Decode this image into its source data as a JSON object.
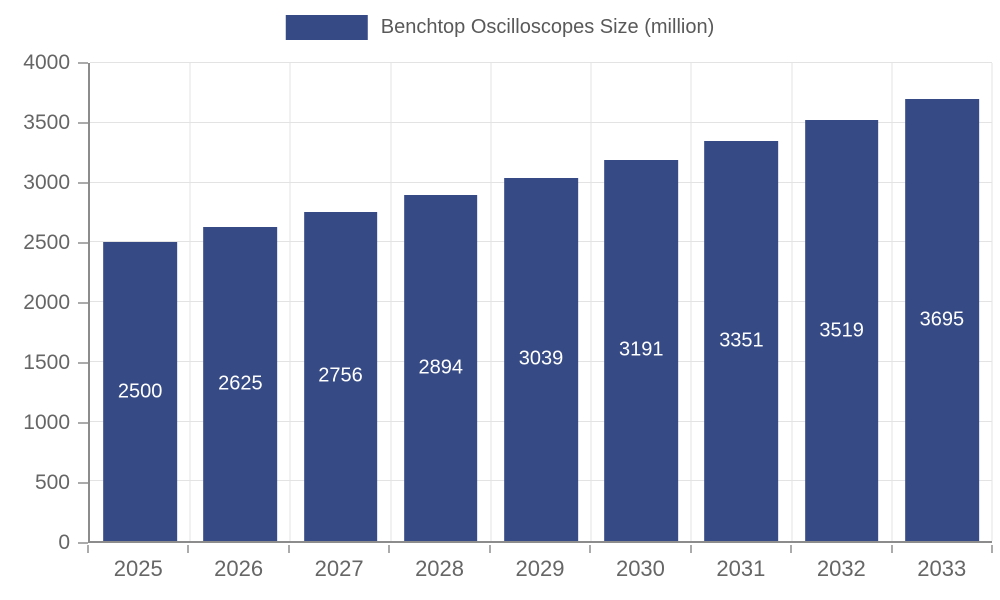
{
  "legend": {
    "label": "Benchtop Oscilloscopes Size (million)"
  },
  "colors": {
    "bar": "#364a85",
    "grid": "#e3e3e3",
    "axis": "#8c8c8c",
    "tick": "#ababab",
    "tick_text": "#666666",
    "legend_text": "#595959",
    "value_label_text": "#ffffff"
  },
  "chart_data": {
    "type": "bar",
    "title": "",
    "legend_label": "Benchtop Oscilloscopes Size (million)",
    "categories": [
      "2025",
      "2026",
      "2027",
      "2028",
      "2029",
      "2030",
      "2031",
      "2032",
      "2033"
    ],
    "values": [
      2500,
      2625,
      2756,
      2894,
      3039,
      3191,
      3351,
      3519,
      3695
    ],
    "xlabel": "",
    "ylabel": "",
    "ylim": [
      0,
      4000
    ],
    "ytick_step": 500,
    "yticks": [
      0,
      500,
      1000,
      1500,
      2000,
      2500,
      3000,
      3500,
      4000
    ],
    "grid": true,
    "legend_position": "top-center",
    "value_labels": "inside-center-white"
  }
}
